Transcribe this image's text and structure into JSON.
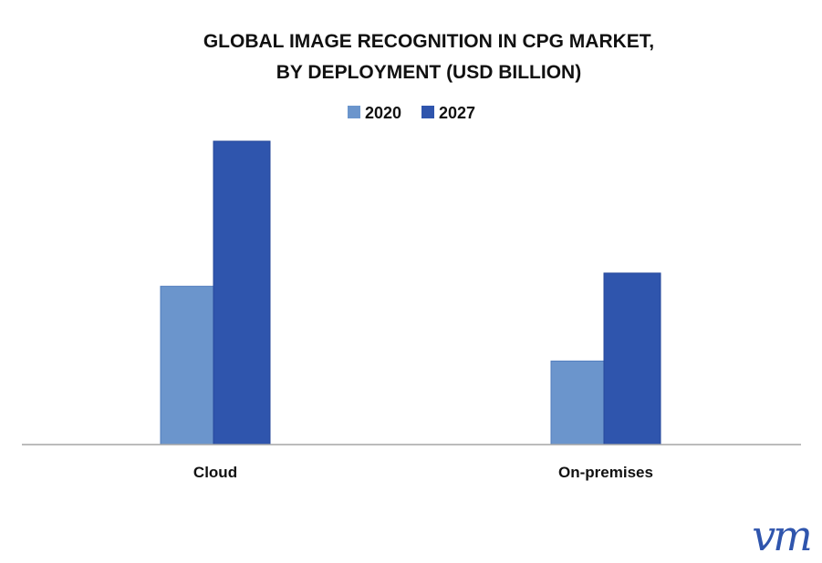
{
  "chart_data": {
    "type": "bar",
    "title_line1": "GLOBAL IMAGE RECOGNITION IN CPG MARKET,",
    "title_line2": "BY DEPLOYMENT  (USD BILLION)",
    "categories": [
      "Cloud",
      "On-premises"
    ],
    "series": [
      {
        "name": "2020",
        "color": "#6b95cc",
        "values": [
          3.6,
          1.9
        ]
      },
      {
        "name": "2027",
        "color": "#2f55ad",
        "values": [
          6.9,
          3.9
        ]
      }
    ],
    "ylim": [
      0,
      7.5
    ],
    "grid": false,
    "legend": "top-center",
    "axis_color": "#a6a6a6"
  },
  "brand": {
    "logo_text": "vm",
    "logo_color": "#2f55ad"
  }
}
